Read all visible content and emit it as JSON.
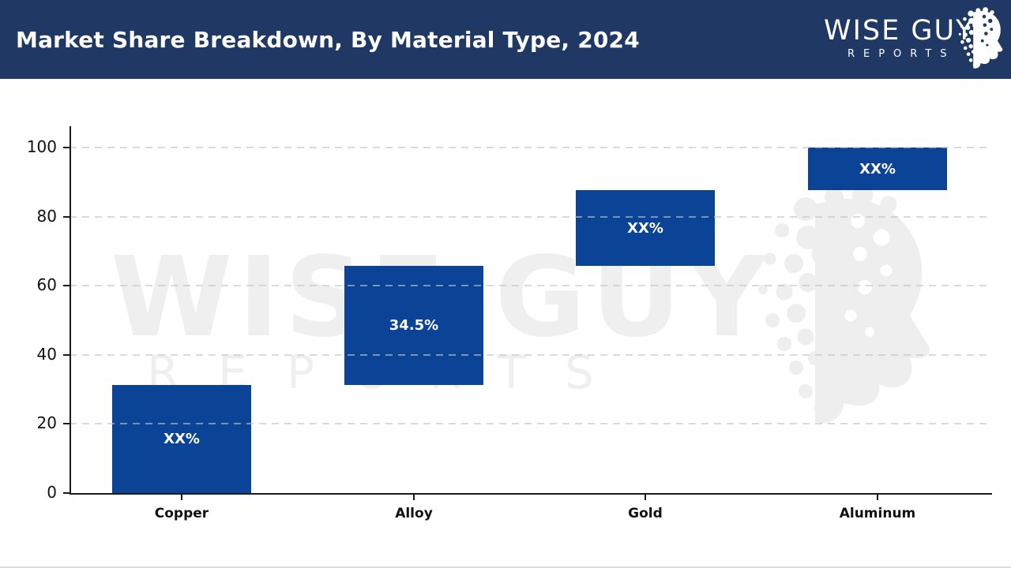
{
  "header": {
    "title": "Market Share Breakdown, By Material Type, 2024",
    "logo": {
      "line1": "WISE GUY",
      "line2": "REPORTS"
    }
  },
  "watermark": {
    "line1": "WISE GUY",
    "line2": "REPORTS"
  },
  "theme": {
    "header_bg": "#1f3864",
    "bar_color": "#0b4397",
    "bar_label_color": "#ffffff",
    "watermark_color": "#efefef",
    "gridline_color": "#c3c3c3",
    "axis_color": "#1a1a1a"
  },
  "chart_data": {
    "type": "bar",
    "subtype": "waterfall",
    "title": "Market Share Breakdown, By Material Type, 2024",
    "categories": [
      "Copper",
      "Alloy",
      "Gold",
      "Aluminum"
    ],
    "starts": [
      0,
      31.3,
      65.8,
      87.7
    ],
    "values": [
      31.3,
      34.5,
      21.9,
      12.3
    ],
    "bar_labels": [
      "XX%",
      "34.5%",
      "XX%",
      "XX%"
    ],
    "xlabel": "",
    "ylabel": "",
    "ylim": [
      0,
      100
    ],
    "yticks": [
      0,
      20,
      40,
      60,
      80,
      100
    ],
    "grid": "horizontal-dashed-over-bars",
    "legend": "none"
  }
}
